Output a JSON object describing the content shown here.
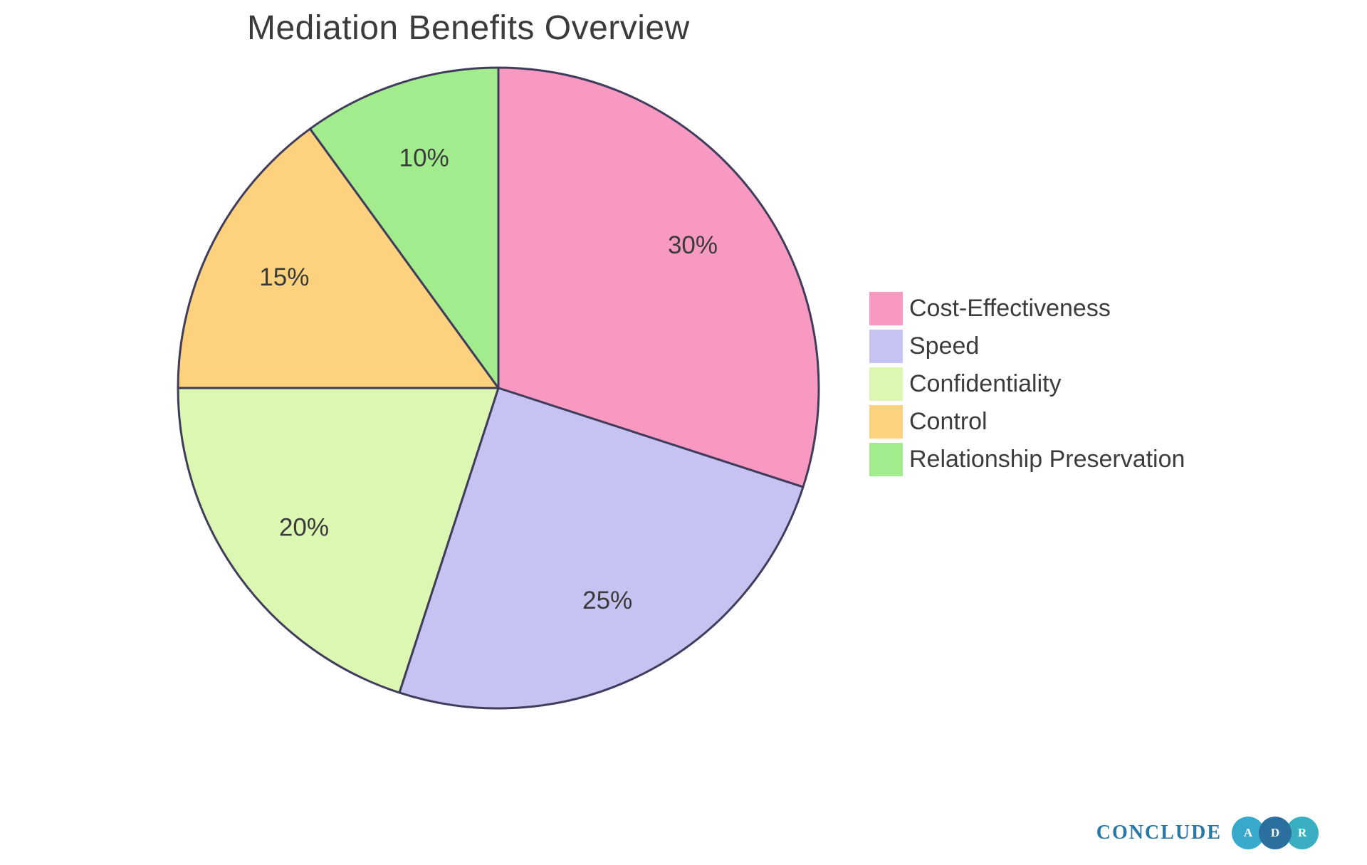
{
  "chart_data": {
    "type": "pie",
    "title": "Mediation Benefits Overview",
    "labels": [
      "Cost-Effectiveness",
      "Speed",
      "Confidentiality",
      "Control",
      "Relationship Preservation"
    ],
    "values": [
      30,
      25,
      20,
      15,
      10
    ],
    "value_labels": [
      "30%",
      "25%",
      "20%",
      "15%",
      "10%"
    ],
    "colors": [
      "#F899C1",
      "#C6C3F2",
      "#DCF7B1",
      "#FCD27E",
      "#A2EC8E"
    ],
    "stroke_color": "#3F3C5C",
    "start_angle_deg": -90,
    "direction": "clockwise",
    "legend_position": "right",
    "background": "#FFFFFF"
  },
  "branding": {
    "wordmark": "CONCLUDE",
    "wordmark_color": "#2878A8",
    "badge_letters": [
      "A",
      "D",
      "R"
    ],
    "badge_colors": [
      "#39A9CB",
      "#2B6F9F",
      "#3BAFC2"
    ]
  }
}
